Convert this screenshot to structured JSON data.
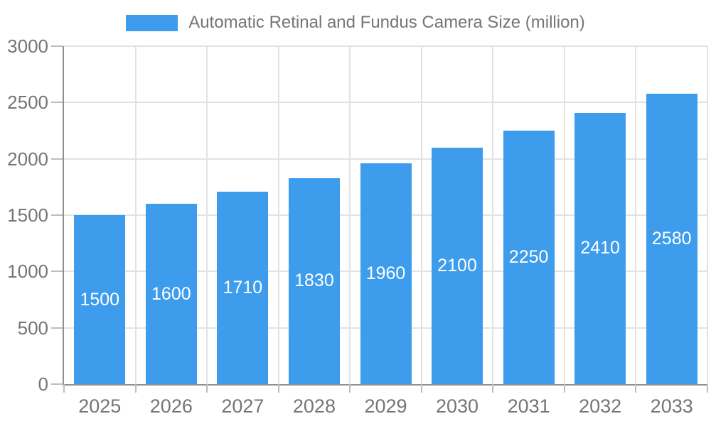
{
  "legend": {
    "series_label": "Automatic Retinal and Fundus Camera Size (million)"
  },
  "chart_data": {
    "type": "bar",
    "title": "Automatic Retinal and Fundus Camera Size (million)",
    "categories": [
      "2025",
      "2026",
      "2027",
      "2028",
      "2029",
      "2030",
      "2031",
      "2032",
      "2033"
    ],
    "values": [
      1500,
      1600,
      1710,
      1830,
      1960,
      2100,
      2250,
      2410,
      2580
    ],
    "xlabel": "",
    "ylabel": "",
    "ylim": [
      0,
      3000
    ],
    "yticks": [
      0,
      500,
      1000,
      1500,
      2000,
      2500,
      3000
    ],
    "grid": true,
    "legend_position": "top",
    "bar_labels_inside": true,
    "colors": {
      "bar": "#3D9CEB",
      "grid": "#E2E2E2",
      "axis": "#8F8F8F",
      "tick": "#BDBDBD",
      "text": "#757575",
      "bar_label": "#FFFFFF",
      "background": "#FFFFFF"
    }
  }
}
